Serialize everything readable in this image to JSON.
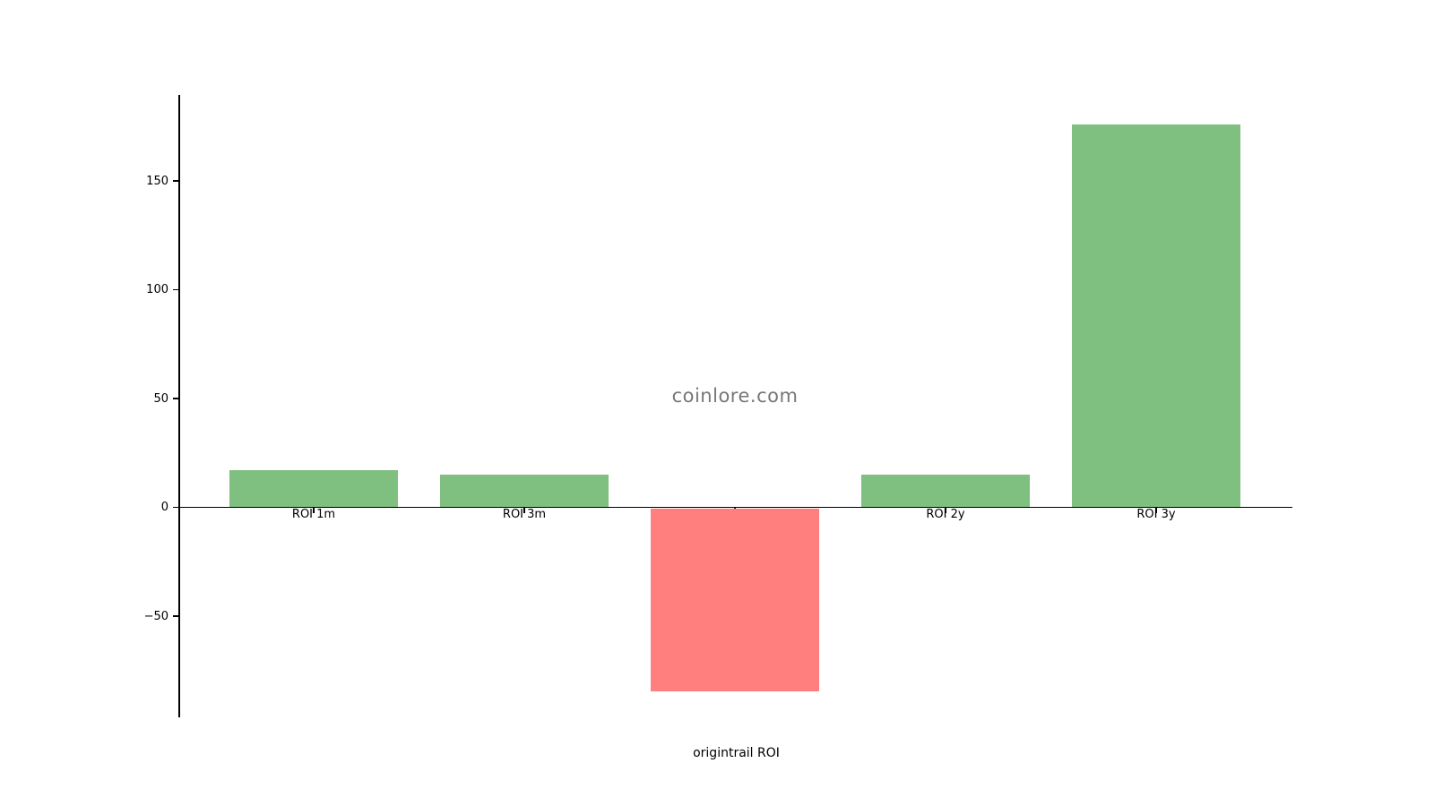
{
  "watermark": "coinlore.com",
  "chart_data": {
    "type": "bar",
    "title": "",
    "xlabel": "origintrail ROI",
    "ylabel": "",
    "categories": [
      "ROI 1m",
      "ROI 3m",
      "",
      "ROI 2y",
      "ROI 3y"
    ],
    "values": [
      17,
      15,
      -84,
      15,
      176
    ],
    "ytick_labels": [
      "150",
      "100",
      "50",
      "0",
      "−50"
    ],
    "ytick_values": [
      150,
      100,
      50,
      0,
      -50
    ],
    "ylim": [
      -97,
      189
    ],
    "grid": false,
    "legend_position": "none",
    "positive_color": "#7fbf7f",
    "negative_color": "#ff7f7f",
    "axis_color": "#000000",
    "text_color": "#000000",
    "watermark_color": "#777777",
    "note": "third bar's x tick label is hidden behind the negative bar"
  }
}
